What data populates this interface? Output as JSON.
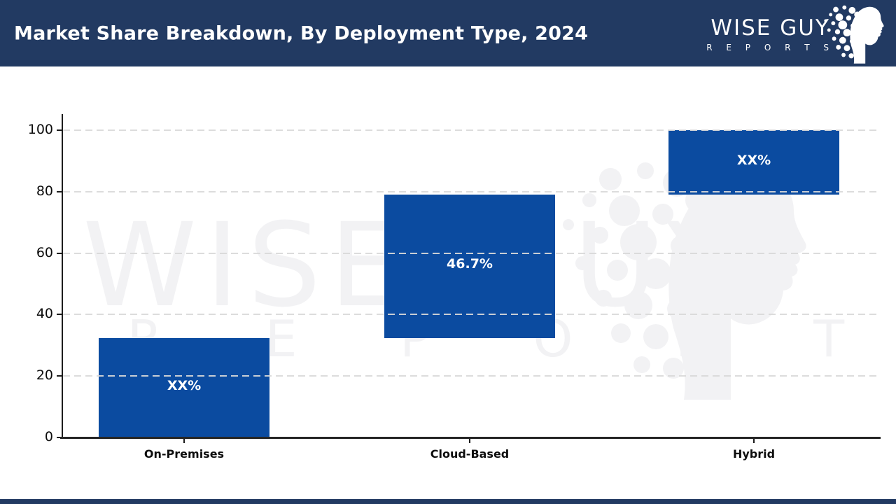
{
  "header": {
    "title": "Market Share Breakdown, By Deployment Type, 2024",
    "logo": {
      "name_line": "WISE GUY",
      "sub_line": "R E P O R T S"
    }
  },
  "watermark": {
    "name_line": "WISE GUY",
    "sub_line": "R E P O R T S"
  },
  "footer": {},
  "colors": {
    "header_bg": "#223A62",
    "footer_bg": "#223A62",
    "bar": "#0B4BA0",
    "bar_label": "#FFFFFF",
    "grid": "#D9D9D9",
    "axis": "#1C1C1C",
    "watermark": "#F2F2F4"
  },
  "chart_data": {
    "type": "bar",
    "subtype": "waterfall",
    "title": "Market Share Breakdown, By Deployment Type, 2024",
    "categories": [
      "On-Premises",
      "Cloud-Based",
      "Hybrid"
    ],
    "segments": [
      {
        "category": "On-Premises",
        "start": 0,
        "end": 32.4,
        "value_label": "XX%"
      },
      {
        "category": "Cloud-Based",
        "start": 32.4,
        "end": 79.1,
        "value_label": "46.7%"
      },
      {
        "category": "Hybrid",
        "start": 79.1,
        "end": 100,
        "value_label": "XX%"
      }
    ],
    "xlabel": "",
    "ylabel": "",
    "yticks": [
      0,
      20,
      40,
      60,
      80,
      100
    ],
    "ylim": [
      0,
      107
    ],
    "grid": "horizontal-dashed",
    "legend": "none"
  }
}
